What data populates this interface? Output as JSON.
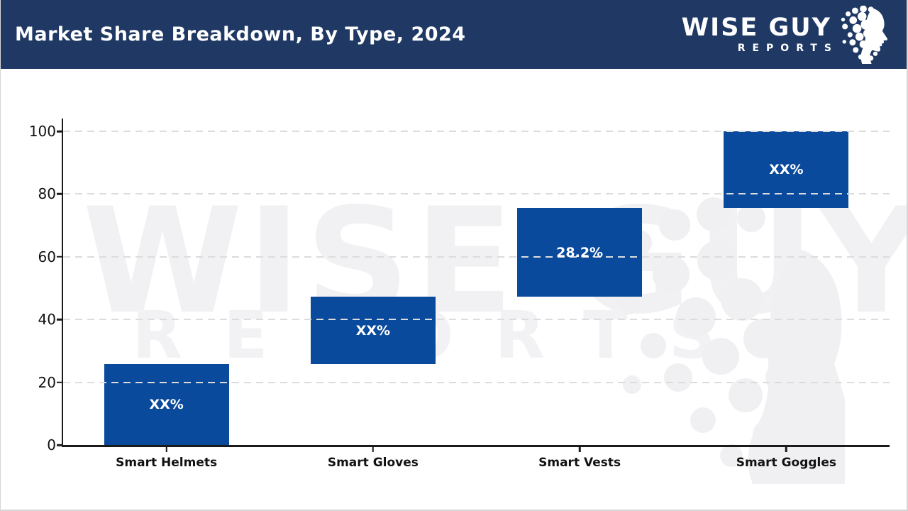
{
  "header": {
    "title": "Market Share Breakdown, By Type, 2024",
    "logo": {
      "line1": "WISE GUY",
      "line2": "REPORTS"
    }
  },
  "watermark": {
    "line1": "WISE GUY",
    "line2": "REPORTS"
  },
  "chart_data": {
    "type": "bar",
    "variant": "waterfall",
    "title": "Market Share Breakdown, By Type, 2024",
    "categories": [
      "Smart Helmets",
      "Smart Gloves",
      "Smart Vests",
      "Smart Goggles"
    ],
    "series": [
      {
        "name": "Market Share (%)",
        "segments": [
          {
            "category": "Smart Helmets",
            "from": 0,
            "to": 25.7,
            "label": "XX%"
          },
          {
            "category": "Smart Gloves",
            "from": 25.7,
            "to": 47.3,
            "label": "XX%"
          },
          {
            "category": "Smart Vests",
            "from": 47.3,
            "to": 75.5,
            "label": "28.2%"
          },
          {
            "category": "Smart Goggles",
            "from": 75.5,
            "to": 100,
            "label": "XX%"
          }
        ]
      }
    ],
    "yticks": [
      0,
      20,
      40,
      60,
      80,
      100
    ],
    "ylim": [
      0,
      104
    ],
    "grid": "dashed-horizontal",
    "legend": "none",
    "bar_color": "#0a4a9c",
    "bar_label_color": "#ffffff",
    "axis_color": "#1a1a1a",
    "gridline_color": "#dcdcdc",
    "header_color": "#1f3864"
  }
}
